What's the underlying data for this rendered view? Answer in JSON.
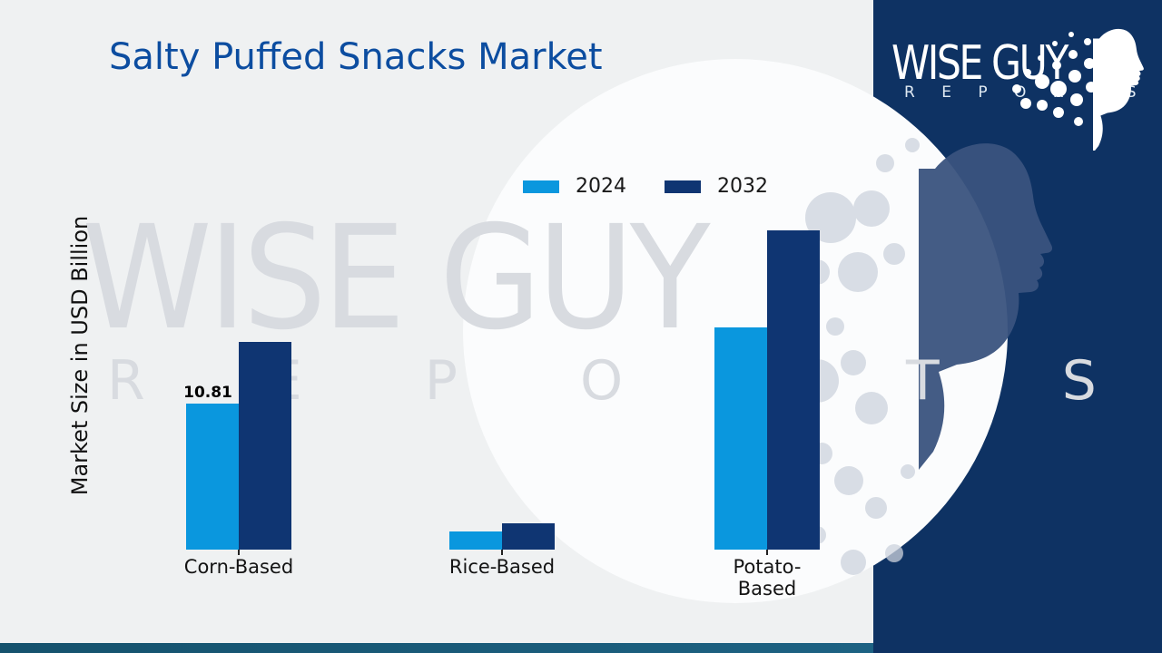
{
  "title": "Salty Puffed Snacks Market",
  "y_axis_label": "Market Size in USD Billion",
  "legend": {
    "items": [
      {
        "label": "2024",
        "color": "#0a97de"
      },
      {
        "label": "2032",
        "color": "#0f3572"
      }
    ]
  },
  "chart_data": {
    "type": "bar",
    "title": "Salty Puffed Snacks Market",
    "ylabel": "Market Size in USD Billion",
    "categories": [
      "Corn-Based",
      "Rice-Based",
      "Potato-Based"
    ],
    "series": [
      {
        "name": "2024",
        "color": "#0a97de",
        "values": [
          10.81,
          1.35,
          16.45
        ]
      },
      {
        "name": "2032",
        "color": "#0f3572",
        "values": [
          15.4,
          1.95,
          23.65
        ]
      }
    ],
    "value_labels": [
      {
        "series": "2024",
        "category": "Corn-Based",
        "text": "10.81"
      }
    ],
    "ylim": [
      0,
      25
    ],
    "grid": false,
    "legend_position": "top-center"
  },
  "watermark": {
    "line1": "WISE GUY",
    "line2": "R E P O R T S"
  },
  "logo": {
    "line1": "WISE GUY",
    "line2": "R E P O R T S"
  },
  "colors": {
    "background": "#eff1f2",
    "panel_navy": "#0e3263",
    "bar_blue": "#0a97de",
    "bar_navy": "#0f3572",
    "title_blue": "#0c4da0",
    "footer_teal": "#1b5c7b",
    "watermark_gray": "#d8dbe0"
  }
}
